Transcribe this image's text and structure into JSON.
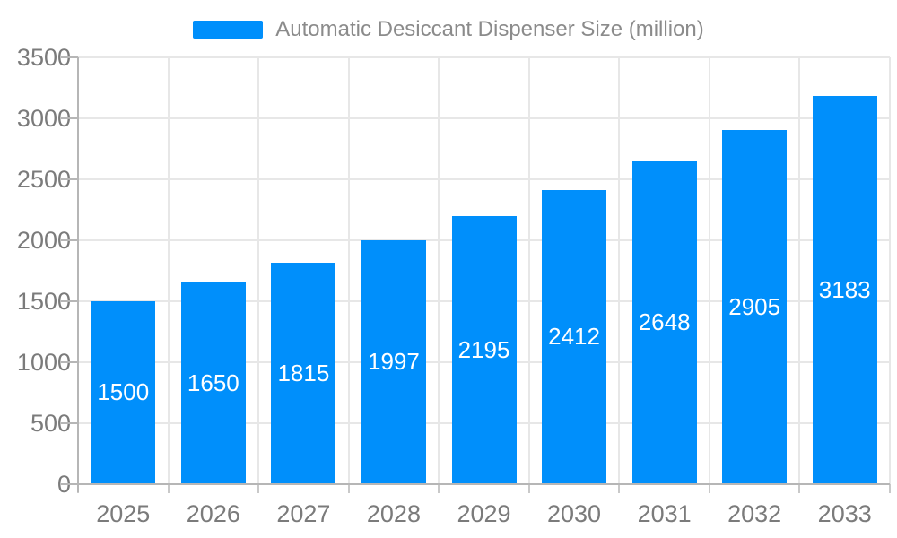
{
  "chart": {
    "background": "#ffffff"
  },
  "legend": {
    "position": "top",
    "swatch_color": "#008FFB",
    "label": "Automatic Desiccant Dispenser Size (million)"
  },
  "chart_data": {
    "type": "bar",
    "title": "Automatic Desiccant Dispenser Size (million)",
    "categories": [
      "2025",
      "2026",
      "2027",
      "2028",
      "2029",
      "2030",
      "2031",
      "2032",
      "2033"
    ],
    "values": [
      1500,
      1650,
      1815,
      1997,
      2195,
      2412,
      2648,
      2905,
      3183
    ],
    "series": [
      {
        "name": "Automatic Desiccant Dispenser Size (million)",
        "values": [
          1500,
          1650,
          1815,
          1997,
          2195,
          2412,
          2648,
          2905,
          3183
        ]
      }
    ],
    "xlabel": "",
    "ylabel": "",
    "ylim": [
      0,
      3500
    ],
    "yticks": [
      0,
      500,
      1000,
      1500,
      2000,
      2500,
      3000,
      3500
    ],
    "grid": "both",
    "legend_position": "top",
    "value_labels": "inside-center",
    "bar_color": "#008FFB",
    "value_label_color": "#ffffff",
    "axis_label_color": "#7b7b7b",
    "gridline_color": "#e7e7e7",
    "axis_line_color": "#b6b6b6"
  }
}
